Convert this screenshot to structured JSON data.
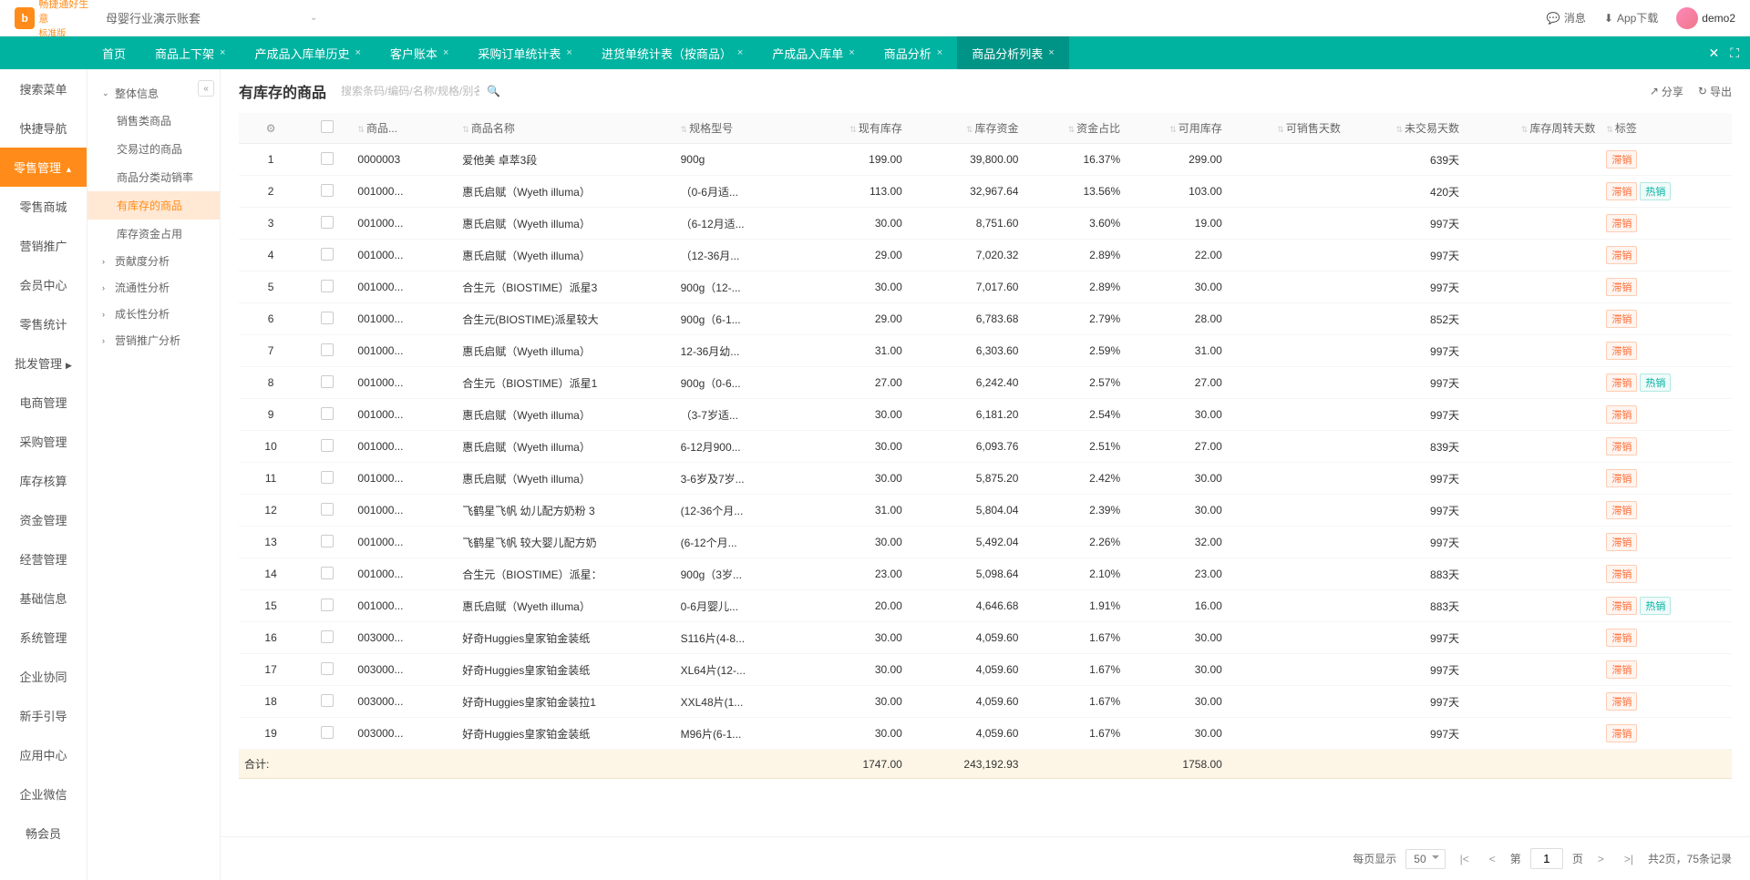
{
  "header": {
    "logo_text": "畅捷通好生意",
    "logo_sub": "标准版",
    "account": "母婴行业演示账套",
    "msg": "消息",
    "download": "App下载",
    "user": "demo2"
  },
  "tabs": [
    {
      "label": "首页",
      "closable": false
    },
    {
      "label": "商品上下架",
      "closable": true
    },
    {
      "label": "产成品入库单历史",
      "closable": true
    },
    {
      "label": "客户账本",
      "closable": true
    },
    {
      "label": "采购订单统计表",
      "closable": true
    },
    {
      "label": "进货单统计表（按商品）",
      "closable": true
    },
    {
      "label": "产成品入库单",
      "closable": true
    },
    {
      "label": "商品分析",
      "closable": true
    },
    {
      "label": "商品分析列表",
      "closable": true,
      "active": true
    }
  ],
  "sidebar": [
    {
      "label": "搜索菜单"
    },
    {
      "label": "快捷导航"
    },
    {
      "label": "零售管理",
      "active": true,
      "expandable": true
    },
    {
      "label": "零售商城"
    },
    {
      "label": "营销推广"
    },
    {
      "label": "会员中心"
    },
    {
      "label": "零售统计"
    },
    {
      "label": "批发管理",
      "expandable": true
    },
    {
      "label": "电商管理"
    },
    {
      "label": "采购管理"
    },
    {
      "label": "库存核算"
    },
    {
      "label": "资金管理"
    },
    {
      "label": "经营管理"
    },
    {
      "label": "基础信息"
    },
    {
      "label": "系统管理"
    },
    {
      "label": "企业协同"
    },
    {
      "label": "新手引导"
    },
    {
      "label": "应用中心"
    },
    {
      "label": "企业微信"
    },
    {
      "label": "畅会员"
    }
  ],
  "secondary": {
    "groups": [
      {
        "label": "整体信息",
        "open": true,
        "subs": [
          {
            "label": "销售类商品"
          },
          {
            "label": "交易过的商品"
          },
          {
            "label": "商品分类动销率"
          },
          {
            "label": "有库存的商品",
            "active": true
          },
          {
            "label": "库存资金占用"
          }
        ]
      },
      {
        "label": "贡献度分析",
        "open": false
      },
      {
        "label": "流通性分析",
        "open": false
      },
      {
        "label": "成长性分析",
        "open": false
      },
      {
        "label": "营销推广分析",
        "open": false
      }
    ]
  },
  "content": {
    "title": "有库存的商品",
    "search_placeholder": "搜索条码/编码/名称/规格/别名",
    "share": "分享",
    "export": "导出"
  },
  "table": {
    "columns": [
      "",
      "",
      "商品...",
      "商品名称",
      "规格型号",
      "现有库存",
      "库存资金",
      "资金占比",
      "可用库存",
      "可销售天数",
      "未交易天数",
      "库存周转天数",
      "标签"
    ],
    "rows": [
      {
        "idx": 1,
        "code": "0000003",
        "name": "爱他美 卓萃3段",
        "spec": "900g",
        "stock": "199.00",
        "fund": "39,800.00",
        "pct": "16.37%",
        "avail": "299.00",
        "sale": "",
        "notr": "639天",
        "turn": "",
        "tags": [
          "滞销"
        ]
      },
      {
        "idx": 2,
        "code": "001000...",
        "name": "惠氏启赋（Wyeth illuma）",
        "spec": "（0-6月适...",
        "stock": "113.00",
        "fund": "32,967.64",
        "pct": "13.56%",
        "avail": "103.00",
        "sale": "",
        "notr": "420天",
        "turn": "",
        "tags": [
          "滞销",
          "热销"
        ]
      },
      {
        "idx": 3,
        "code": "001000...",
        "name": "惠氏启赋（Wyeth illuma）",
        "spec": "（6-12月适...",
        "stock": "30.00",
        "fund": "8,751.60",
        "pct": "3.60%",
        "avail": "19.00",
        "sale": "",
        "notr": "997天",
        "turn": "",
        "tags": [
          "滞销"
        ]
      },
      {
        "idx": 4,
        "code": "001000...",
        "name": "惠氏启赋（Wyeth illuma）",
        "spec": "（12-36月...",
        "stock": "29.00",
        "fund": "7,020.32",
        "pct": "2.89%",
        "avail": "22.00",
        "sale": "",
        "notr": "997天",
        "turn": "",
        "tags": [
          "滞销"
        ]
      },
      {
        "idx": 5,
        "code": "001000...",
        "name": "合生元（BIOSTIME）派星3",
        "spec": "900g（12-...",
        "stock": "30.00",
        "fund": "7,017.60",
        "pct": "2.89%",
        "avail": "30.00",
        "sale": "",
        "notr": "997天",
        "turn": "",
        "tags": [
          "滞销"
        ]
      },
      {
        "idx": 6,
        "code": "001000...",
        "name": "合生元(BIOSTIME)派星较大",
        "spec": "900g（6-1...",
        "stock": "29.00",
        "fund": "6,783.68",
        "pct": "2.79%",
        "avail": "28.00",
        "sale": "",
        "notr": "852天",
        "turn": "",
        "tags": [
          "滞销"
        ]
      },
      {
        "idx": 7,
        "code": "001000...",
        "name": "惠氏启赋（Wyeth illuma）",
        "spec": "12-36月幼...",
        "stock": "31.00",
        "fund": "6,303.60",
        "pct": "2.59%",
        "avail": "31.00",
        "sale": "",
        "notr": "997天",
        "turn": "",
        "tags": [
          "滞销"
        ]
      },
      {
        "idx": 8,
        "code": "001000...",
        "name": "合生元（BIOSTIME）派星1",
        "spec": "900g（0-6...",
        "stock": "27.00",
        "fund": "6,242.40",
        "pct": "2.57%",
        "avail": "27.00",
        "sale": "",
        "notr": "997天",
        "turn": "",
        "tags": [
          "滞销",
          "热销"
        ]
      },
      {
        "idx": 9,
        "code": "001000...",
        "name": "惠氏启赋（Wyeth illuma）",
        "spec": "（3-7岁适...",
        "stock": "30.00",
        "fund": "6,181.20",
        "pct": "2.54%",
        "avail": "30.00",
        "sale": "",
        "notr": "997天",
        "turn": "",
        "tags": [
          "滞销"
        ]
      },
      {
        "idx": 10,
        "code": "001000...",
        "name": "惠氏启赋（Wyeth illuma）",
        "spec": "6-12月900...",
        "stock": "30.00",
        "fund": "6,093.76",
        "pct": "2.51%",
        "avail": "27.00",
        "sale": "",
        "notr": "839天",
        "turn": "",
        "tags": [
          "滞销"
        ]
      },
      {
        "idx": 11,
        "code": "001000...",
        "name": "惠氏启赋（Wyeth illuma）",
        "spec": "3-6岁及7岁...",
        "stock": "30.00",
        "fund": "5,875.20",
        "pct": "2.42%",
        "avail": "30.00",
        "sale": "",
        "notr": "997天",
        "turn": "",
        "tags": [
          "滞销"
        ]
      },
      {
        "idx": 12,
        "code": "001000...",
        "name": "飞鹤星飞帆 幼儿配方奶粉 3",
        "spec": "(12-36个月...",
        "stock": "31.00",
        "fund": "5,804.04",
        "pct": "2.39%",
        "avail": "30.00",
        "sale": "",
        "notr": "997天",
        "turn": "",
        "tags": [
          "滞销"
        ]
      },
      {
        "idx": 13,
        "code": "001000...",
        "name": "飞鹤星飞帆 较大婴儿配方奶",
        "spec": "(6-12个月...",
        "stock": "30.00",
        "fund": "5,492.04",
        "pct": "2.26%",
        "avail": "32.00",
        "sale": "",
        "notr": "997天",
        "turn": "",
        "tags": [
          "滞销"
        ]
      },
      {
        "idx": 14,
        "code": "001000...",
        "name": "合生元（BIOSTIME）派星：",
        "spec": "900g（3岁...",
        "stock": "23.00",
        "fund": "5,098.64",
        "pct": "2.10%",
        "avail": "23.00",
        "sale": "",
        "notr": "883天",
        "turn": "",
        "tags": [
          "滞销"
        ]
      },
      {
        "idx": 15,
        "code": "001000...",
        "name": "惠氏启赋（Wyeth illuma）",
        "spec": "0-6月婴儿...",
        "stock": "20.00",
        "fund": "4,646.68",
        "pct": "1.91%",
        "avail": "16.00",
        "sale": "",
        "notr": "883天",
        "turn": "",
        "tags": [
          "滞销",
          "热销"
        ]
      },
      {
        "idx": 16,
        "code": "003000...",
        "name": "好奇Huggies皇家铂金装纸",
        "spec": "S116片(4-8...",
        "stock": "30.00",
        "fund": "4,059.60",
        "pct": "1.67%",
        "avail": "30.00",
        "sale": "",
        "notr": "997天",
        "turn": "",
        "tags": [
          "滞销"
        ]
      },
      {
        "idx": 17,
        "code": "003000...",
        "name": "好奇Huggies皇家铂金装纸",
        "spec": "XL64片(12-...",
        "stock": "30.00",
        "fund": "4,059.60",
        "pct": "1.67%",
        "avail": "30.00",
        "sale": "",
        "notr": "997天",
        "turn": "",
        "tags": [
          "滞销"
        ]
      },
      {
        "idx": 18,
        "code": "003000...",
        "name": "好奇Huggies皇家铂金装拉1",
        "spec": "XXL48片(1...",
        "stock": "30.00",
        "fund": "4,059.60",
        "pct": "1.67%",
        "avail": "30.00",
        "sale": "",
        "notr": "997天",
        "turn": "",
        "tags": [
          "滞销"
        ]
      },
      {
        "idx": 19,
        "code": "003000...",
        "name": "好奇Huggies皇家铂金装纸",
        "spec": "M96片(6-1...",
        "stock": "30.00",
        "fund": "4,059.60",
        "pct": "1.67%",
        "avail": "30.00",
        "sale": "",
        "notr": "997天",
        "turn": "",
        "tags": [
          "滞销"
        ]
      }
    ],
    "totals": {
      "label": "合计:",
      "stock": "1747.00",
      "fund": "243,192.93",
      "avail": "1758.00"
    }
  },
  "pagination": {
    "page_size_label": "每页显示",
    "page_size": "50",
    "page_label": "第",
    "page": "1",
    "page_unit": "页",
    "summary": "共2页，75条记录"
  }
}
